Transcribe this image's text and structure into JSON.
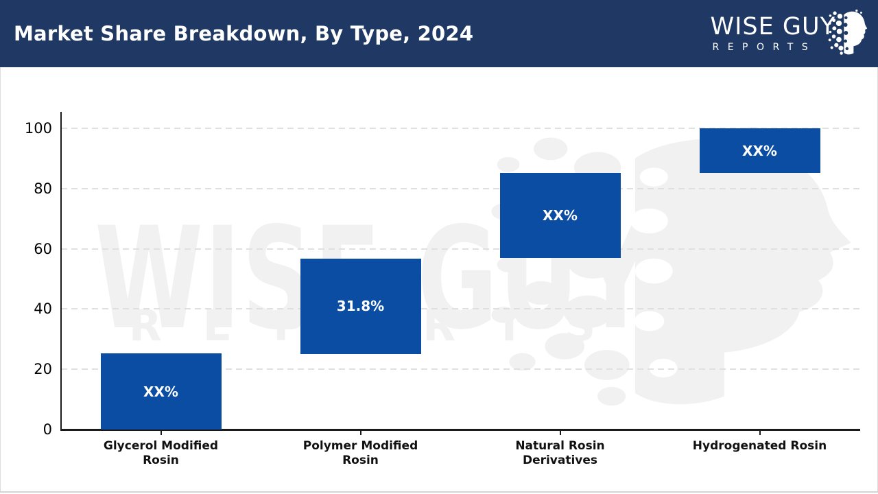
{
  "header": {
    "title": "Market Share Breakdown, By Type, 2024",
    "background": "#1f3864",
    "logo": {
      "line1": "WISE GUY",
      "line2": "REPORTS"
    }
  },
  "watermark": {
    "line1": "WISE GUY",
    "line2": "REPORTS"
  },
  "chart_data": {
    "type": "bar",
    "variant": "floating-segment-waterfall",
    "title": "Market Share Breakdown, By Type, 2024",
    "categories": [
      "Glycerol Modified\nRosin",
      "Polymer Modified\nRosin",
      "Natural Rosin\nDerivatives",
      "Hydrogenated Rosin"
    ],
    "series": [
      {
        "name": "Glycerol Modified Rosin",
        "start": 0,
        "end": 25.2,
        "label": "XX%"
      },
      {
        "name": "Polymer Modified Rosin",
        "start": 25.0,
        "end": 56.8,
        "label": "31.8%"
      },
      {
        "name": "Natural Rosin Derivatives",
        "start": 57.0,
        "end": 85.1,
        "label": "XX%"
      },
      {
        "name": "Hydrogenated Rosin",
        "start": 85.1,
        "end": 100,
        "label": "XX%"
      }
    ],
    "xlabel": "",
    "ylabel": "",
    "ylim": [
      0,
      100
    ],
    "yticks": [
      0,
      20,
      40,
      60,
      80,
      100
    ],
    "grid": "horizontal-dashed",
    "legend": "none",
    "bar_color": "#0b4da2",
    "bar_label_color": "#ffffff",
    "axis_color": "#1a1a1a",
    "gridline_color": "#e0e0e0"
  }
}
